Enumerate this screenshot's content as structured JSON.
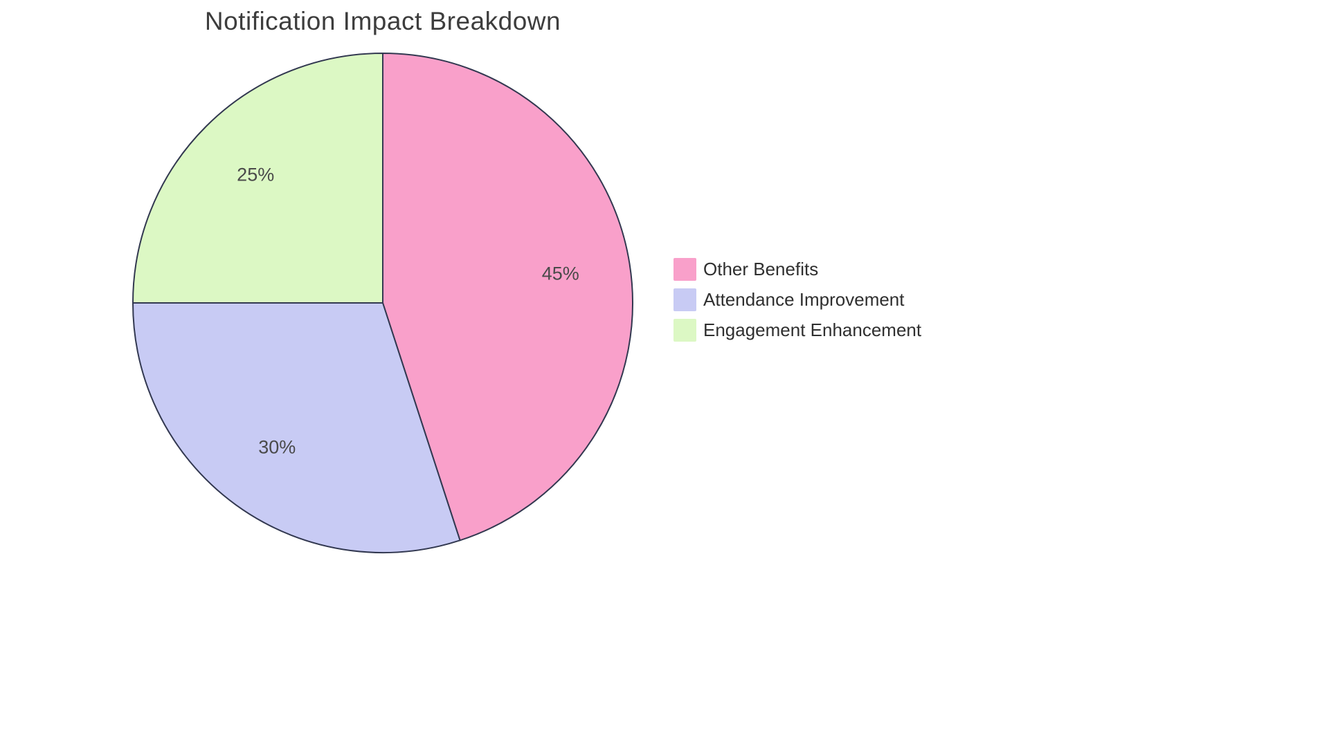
{
  "chart_data": {
    "type": "pie",
    "title": "Notification Impact Breakdown",
    "slices": [
      {
        "label": "Other Benefits",
        "value": 45,
        "color": "#F9A0CA"
      },
      {
        "label": "Attendance Improvement",
        "value": 30,
        "color": "#C8CBF4"
      },
      {
        "label": "Engagement Enhancement",
        "value": 25,
        "color": "#DCF8C4"
      }
    ],
    "start_angle_deg": -90,
    "direction": "clockwise",
    "label_format": "percent",
    "stroke_color": "#323850",
    "stroke_width": 2,
    "legend_position": "right",
    "background_color": "#ffffff"
  }
}
